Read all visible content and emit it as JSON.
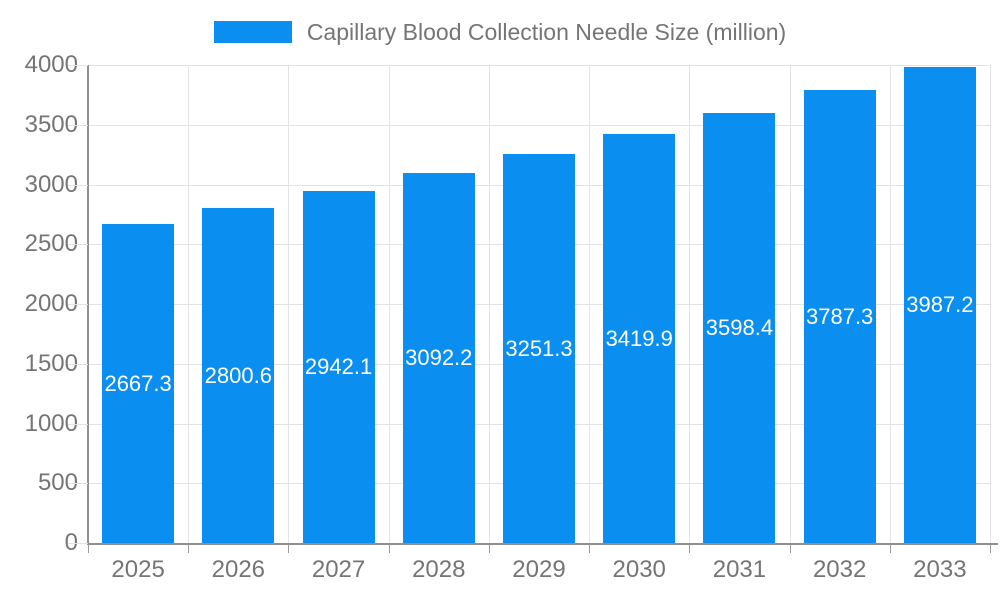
{
  "chart_data": {
    "type": "bar",
    "title": "Capillary Blood Collection Needle Size (million)",
    "categories": [
      "2025",
      "2026",
      "2027",
      "2028",
      "2029",
      "2030",
      "2031",
      "2032",
      "2033"
    ],
    "values": [
      2667.3,
      2800.6,
      2942.1,
      3092.2,
      3251.3,
      3419.9,
      3598.4,
      3787.3,
      3987.2
    ],
    "series_name": "Capillary Blood Collection Needle Size (million)",
    "xlabel": "",
    "ylabel": "",
    "ylim": [
      0,
      4000
    ],
    "yticks": [
      0,
      500,
      1000,
      1500,
      2000,
      2500,
      3000,
      3500,
      4000
    ],
    "grid": "on",
    "legend_position": "top-center",
    "value_labels": "centered-inside-bars",
    "colors": {
      "bar": "#0a8ff0",
      "grid": "#e3e3e3",
      "axis": "#8f8f8f",
      "tick": "#9e9e9e",
      "text": "#757575",
      "value_label": "#ffffff",
      "background": "#ffffff"
    }
  }
}
